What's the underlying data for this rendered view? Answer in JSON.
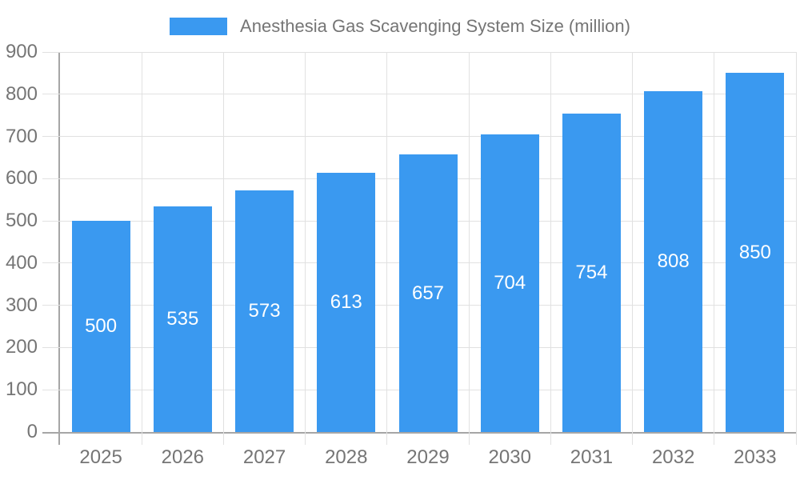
{
  "chart_data": {
    "type": "bar",
    "title": "Anesthesia Gas Scavenging System Size (million)",
    "legend": {
      "position": "top",
      "entries": [
        "Anesthesia Gas Scavenging System Size (million)"
      ]
    },
    "categories": [
      "2025",
      "2026",
      "2027",
      "2028",
      "2029",
      "2030",
      "2031",
      "2032",
      "2033"
    ],
    "series": [
      {
        "name": "Anesthesia Gas Scavenging System Size (million)",
        "values": [
          500,
          535,
          573,
          613,
          657,
          704,
          754,
          808,
          850
        ]
      }
    ],
    "value_labels": [
      "500",
      "535",
      "573",
      "613",
      "657",
      "704",
      "754",
      "808",
      "850"
    ],
    "xlabel": "",
    "ylabel": "",
    "ylim": [
      0,
      900
    ],
    "yticks": [
      0,
      100,
      200,
      300,
      400,
      500,
      600,
      700,
      800,
      900
    ],
    "grid": true,
    "colors": {
      "bar": "#3A99F0",
      "value_label": "#FFFFFF",
      "axis_text": "#757575",
      "axis_line": "#A6A6A6",
      "gridline": "#E1E1E1",
      "background": "#FFFFFF"
    }
  }
}
